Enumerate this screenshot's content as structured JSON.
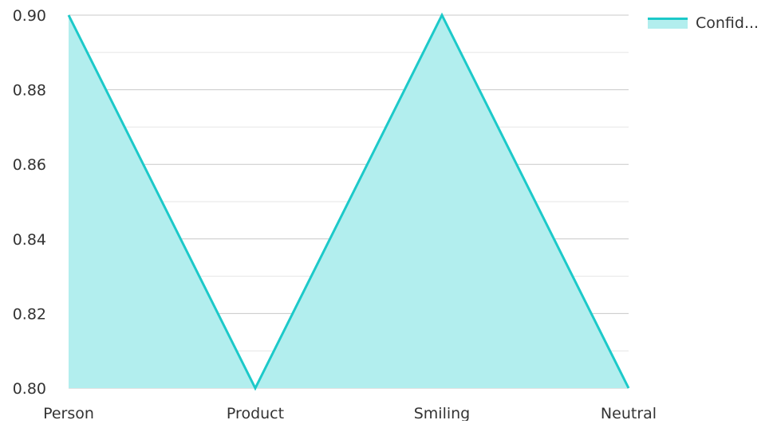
{
  "chart_data": {
    "type": "area",
    "categories": [
      "Person",
      "Product",
      "Smiling",
      "Neutral"
    ],
    "series": [
      {
        "name": "Confid...",
        "values": [
          0.9,
          0.8,
          0.9,
          0.8
        ]
      }
    ],
    "title": "",
    "xlabel": "",
    "ylabel": "",
    "ylim": [
      0.8,
      0.9
    ],
    "y_ticks": [
      "0.80",
      "0.82",
      "0.84",
      "0.86",
      "0.88",
      "0.90"
    ],
    "grid": true,
    "legend_position": "top-right",
    "colors": {
      "line": "#1cc9c9",
      "fill": "#b2eeee",
      "grid_major": "#c8c8c8",
      "grid_minor": "#e6e6e6",
      "text": "#333333"
    }
  }
}
